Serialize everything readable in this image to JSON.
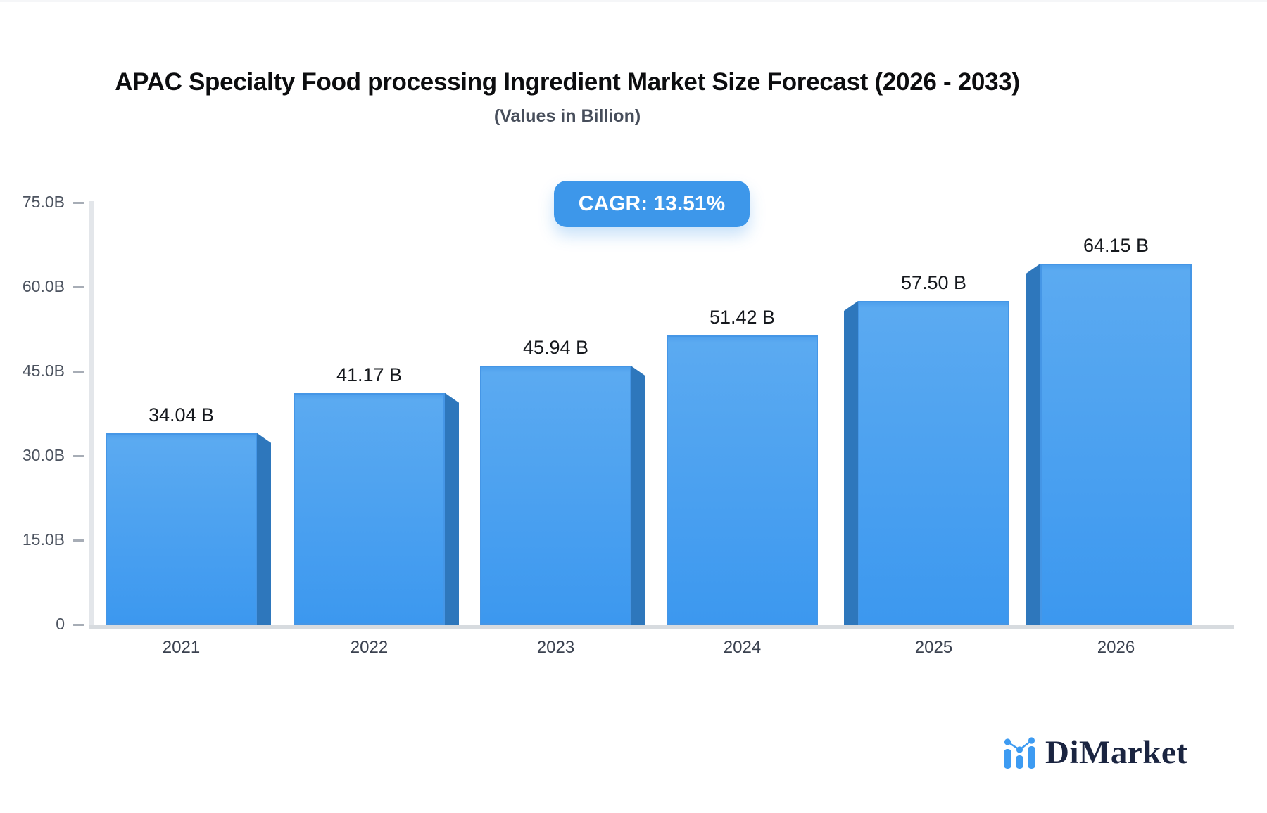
{
  "header": {
    "title": "APAC Specialty Food processing Ingredient Market Size Forecast (2026 - 2033)",
    "subtitle": "(Values in Billion)"
  },
  "badge": {
    "label": "CAGR: 13.51%",
    "color": "#3D97EA"
  },
  "chart_data": {
    "type": "bar",
    "title": "APAC Specialty Food processing Ingredient Market Size Forecast (2026 - 2033)",
    "subtitle": "(Values in Billion)",
    "categories": [
      "2021",
      "2022",
      "2023",
      "2024",
      "2025",
      "2026"
    ],
    "values": [
      34.04,
      41.17,
      45.94,
      51.42,
      57.5,
      64.15
    ],
    "value_labels": [
      "34.04 B",
      "41.17 B",
      "45.94 B",
      "51.42 B",
      "57.50 B",
      "64.15 B"
    ],
    "xlabel": "",
    "ylabel": "",
    "ylim": [
      0,
      75
    ],
    "yticks": [
      {
        "value": 75,
        "label": "75.0B"
      },
      {
        "value": 60,
        "label": "60.0B"
      },
      {
        "value": 45,
        "label": "45.0B"
      },
      {
        "value": 30,
        "label": "30.0B"
      },
      {
        "value": 15,
        "label": "15.0B"
      },
      {
        "value": 0,
        "label": "0"
      }
    ],
    "grid": "off",
    "legend": "none",
    "colors": {
      "bar_top": "#5BAAF1",
      "bar_bottom": "#3C98EF",
      "bar_border": "#4596E6",
      "bar_side_face": "#2E77BC",
      "axis_line": "#D7DBDF",
      "tick_text": "#4C535F"
    }
  },
  "logo": {
    "text": "DiMarket",
    "icon": "bar-chart-icon",
    "icon_color": "#3D9BF2",
    "text_color": "#1A2440"
  }
}
